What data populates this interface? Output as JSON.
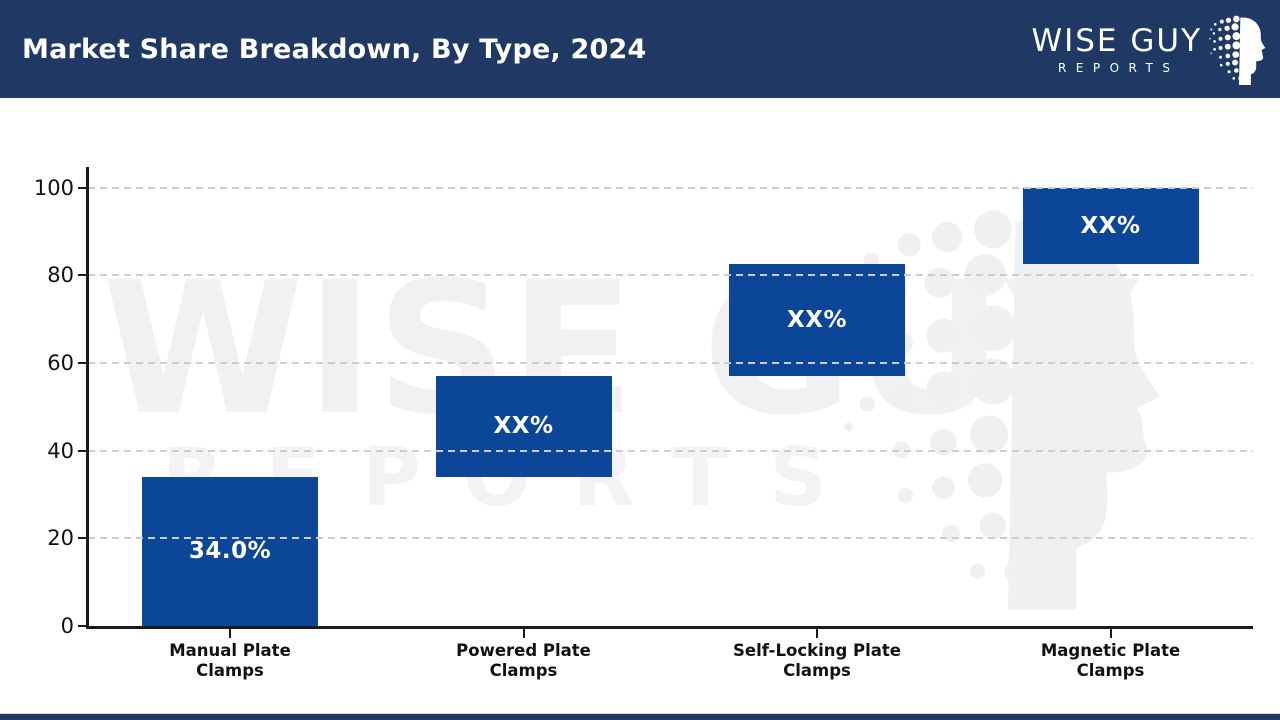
{
  "header": {
    "title": "Market Share Breakdown, By Type, 2024",
    "logo": {
      "line1": "WISE GUY",
      "line2": "REPORTS"
    }
  },
  "watermark": {
    "line1": "WISE GUY",
    "line2": "REPORTS"
  },
  "colors": {
    "header_navy": "#203864",
    "bar_blue": "#0b4699",
    "gridline_gray": "#cdcdcd",
    "axis_black": "#1a1a1a",
    "watermark_gray": "#f1f1f3",
    "value_label_white": "#ffffff"
  },
  "chart_data": {
    "type": "bar",
    "subtype": "waterfall",
    "title": "Market Share Breakdown, By Type, 2024",
    "xlabel": "",
    "ylabel": "",
    "ylim": [
      0,
      100
    ],
    "y_ticks": [
      0,
      20,
      40,
      60,
      80,
      100
    ],
    "grid": "horizontal-dashed",
    "legend": "none",
    "categories": [
      "Manual Plate Clamps",
      "Powered Plate Clamps",
      "Self-Locking Plate Clamps",
      "Magnetic Plate Clamps"
    ],
    "category_lines": [
      [
        "Manual Plate",
        "Clamps"
      ],
      [
        "Powered Plate",
        "Clamps"
      ],
      [
        "Self-Locking Plate",
        "Clamps"
      ],
      [
        "Magnetic Plate",
        "Clamps"
      ]
    ],
    "segments": [
      {
        "label": "Manual Plate Clamps",
        "start": 0,
        "end": 34,
        "value_label": "34.0%"
      },
      {
        "label": "Powered Plate Clamps",
        "start": 34,
        "end": 57,
        "value_label": "XX%"
      },
      {
        "label": "Self-Locking Plate Clamps",
        "start": 57,
        "end": 82.5,
        "value_label": "XX%"
      },
      {
        "label": "Magnetic Plate Clamps",
        "start": 82.5,
        "end": 100,
        "value_label": "XX%"
      }
    ],
    "values": [
      34,
      23,
      25.5,
      17.5
    ]
  }
}
